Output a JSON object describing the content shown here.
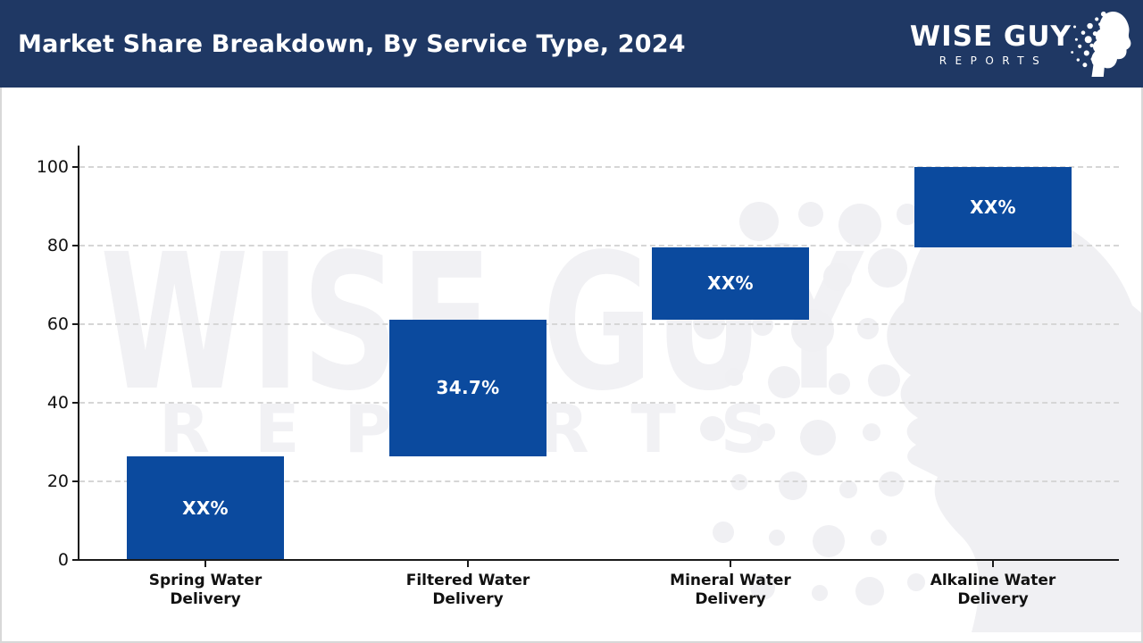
{
  "header": {
    "title": "Market Share Breakdown, By Service Type, 2024",
    "logo": {
      "line1": "WISE GUY",
      "line2": "REPORTS"
    }
  },
  "watermark": {
    "line1": "WISE GUY",
    "line2": "REPORTS"
  },
  "chart_data": {
    "type": "bar",
    "subtype": "waterfall",
    "title": "Market Share Breakdown, By Service Type, 2024",
    "xlabel": "",
    "ylabel": "",
    "ylim": [
      0,
      105
    ],
    "yticks": [
      0,
      20,
      40,
      60,
      80,
      100
    ],
    "grid": "horizontal-dashed",
    "legend": "none",
    "bar_color": "#0b4a9e",
    "bar_label_color": "#ffffff",
    "categories": [
      "Spring Water Delivery",
      "Filtered Water Delivery",
      "Mineral Water Delivery",
      "Alkaline Water Delivery"
    ],
    "segments": [
      {
        "category": "Spring Water Delivery",
        "label_lines": [
          "Spring Water",
          "Delivery"
        ],
        "start": 0,
        "end": 26.4,
        "value": 26.4,
        "bar_label": "XX%"
      },
      {
        "category": "Filtered Water Delivery",
        "label_lines": [
          "Filtered Water",
          "Delivery"
        ],
        "start": 26.4,
        "end": 61.1,
        "value": 34.7,
        "bar_label": "34.7%"
      },
      {
        "category": "Mineral Water Delivery",
        "label_lines": [
          "Mineral Water",
          "Delivery"
        ],
        "start": 61.1,
        "end": 79.6,
        "value": 18.5,
        "bar_label": "XX%"
      },
      {
        "category": "Alkaline Water Delivery",
        "label_lines": [
          "Alkaline Water",
          "Delivery"
        ],
        "start": 79.6,
        "end": 100,
        "value": 20.4,
        "bar_label": "XX%"
      }
    ]
  }
}
